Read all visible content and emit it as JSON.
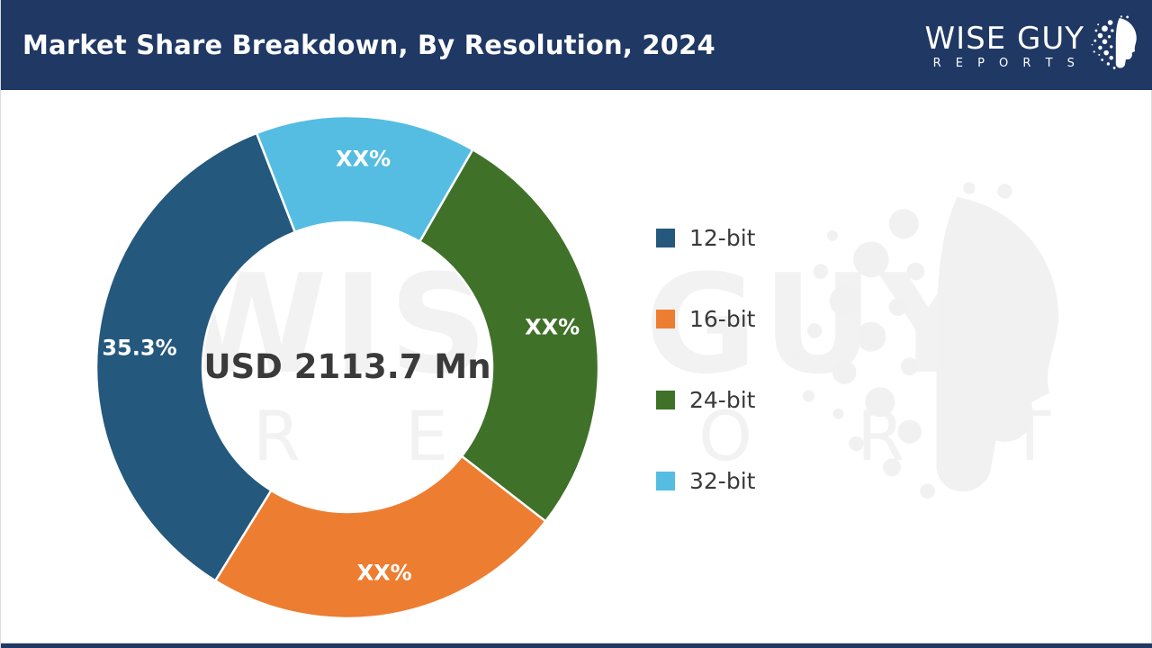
{
  "header": {
    "title": "Market Share Breakdown, By Resolution, 2024",
    "logo": {
      "line1": "WISE GUY",
      "line2": "R E P O R T S"
    }
  },
  "watermark": {
    "line1": "WISE GUY",
    "line2": "R E P O R T S"
  },
  "chart_data": {
    "type": "pie",
    "subtype": "donut",
    "title": "Market Share Breakdown, By Resolution, 2024",
    "center_label": "USD 2113.7 Mn",
    "legend_position": "right",
    "start_angle_deg": -21.2,
    "direction": "counterclockwise",
    "inner_radius_ratio": 0.577,
    "segments": [
      {
        "name": "12-bit",
        "label": "35.3%",
        "value": 35.3,
        "color": "#24587D"
      },
      {
        "name": "16-bit",
        "label": "XX%",
        "value": 23.3,
        "color": "#ED7D31"
      },
      {
        "name": "24-bit",
        "label": "XX%",
        "value": 27.2,
        "color": "#3F7129"
      },
      {
        "name": "32-bit",
        "label": "XX%",
        "value": 14.2,
        "color": "#55BDE2"
      }
    ]
  },
  "colors": {
    "header_bg": "#1F3864",
    "footer_bg": "#1F3864",
    "text_dark": "#3A3A3A",
    "watermark": "#F2F2F2",
    "border": "#D9D9D9"
  }
}
